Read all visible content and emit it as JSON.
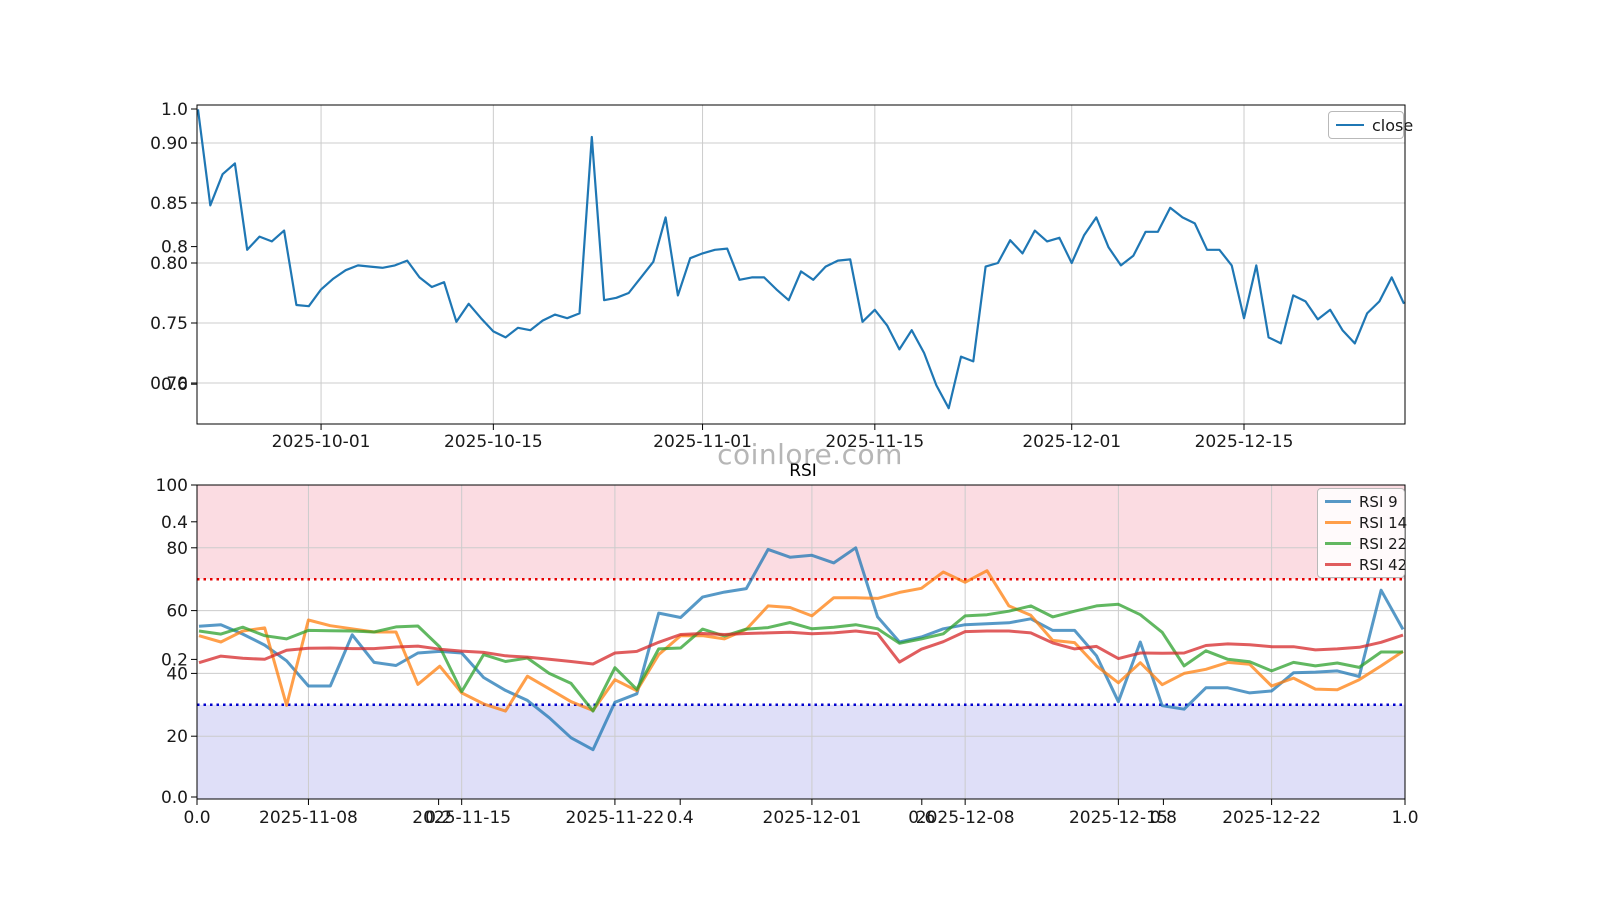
{
  "watermark": {
    "text": "coinlore.com"
  },
  "rsi_panel": {
    "title": "RSI"
  },
  "colors": {
    "close": "#1f77b4",
    "rsi9": "rgba(31,119,180,0.75)",
    "rsi14": "rgba(255,127,14,0.75)",
    "rsi22": "rgba(44,160,44,0.75)",
    "rsi42": "rgba(214,39,40,0.75)",
    "overbought_line": "#e50000",
    "oversold_line": "#0000cd",
    "overbought_band": "#fbdce2",
    "oversold_band": "#dfdff8",
    "grid": "#cccccc",
    "spine": "#000000",
    "tick_text": "#1a1a1a"
  },
  "chart_data": [
    {
      "type": "line",
      "title": "",
      "legend": [
        {
          "label": "close",
          "color_key": "close"
        }
      ],
      "legend_position": "upper right",
      "grid": true,
      "x_range": [
        "2025-09-21",
        "2025-12-28"
      ],
      "ylim": [
        0.666,
        0.932
      ],
      "y_ticks": [
        {
          "label": "0.90",
          "value": 0.9
        },
        {
          "label": "0.85",
          "value": 0.85
        },
        {
          "label": "0.80",
          "value": 0.8
        },
        {
          "label": "0.75",
          "value": 0.75
        },
        {
          "label": "0.70",
          "value": 0.7
        }
      ],
      "x_ticks": [
        {
          "label": "2025-10-01",
          "idx": 10
        },
        {
          "label": "2025-10-15",
          "idx": 24
        },
        {
          "label": "2025-11-01",
          "idx": 41
        },
        {
          "label": "2025-11-15",
          "idx": 55
        },
        {
          "label": "2025-12-01",
          "idx": 71
        },
        {
          "label": "2025-12-15",
          "idx": 85
        }
      ],
      "series": [
        {
          "name": "close",
          "color_key": "close",
          "width": 2.2,
          "values": [
            0.928,
            0.848,
            0.874,
            0.883,
            0.811,
            0.822,
            0.818,
            0.827,
            0.765,
            0.764,
            0.778,
            0.787,
            0.794,
            0.798,
            0.797,
            0.796,
            0.798,
            0.802,
            0.788,
            0.78,
            0.784,
            0.751,
            0.766,
            0.754,
            0.743,
            0.738,
            0.746,
            0.744,
            0.752,
            0.757,
            0.754,
            0.758,
            0.905,
            0.769,
            0.771,
            0.775,
            0.788,
            0.801,
            0.838,
            0.773,
            0.804,
            0.808,
            0.811,
            0.812,
            0.786,
            0.788,
            0.788,
            0.778,
            0.769,
            0.793,
            0.786,
            0.797,
            0.802,
            0.803,
            0.751,
            0.761,
            0.748,
            0.728,
            0.744,
            0.725,
            0.698,
            0.679,
            0.722,
            0.718,
            0.797,
            0.8,
            0.819,
            0.808,
            0.827,
            0.818,
            0.821,
            0.8,
            0.823,
            0.838,
            0.813,
            0.798,
            0.806,
            0.826,
            0.826,
            0.846,
            0.838,
            0.833,
            0.811,
            0.811,
            0.798,
            0.754,
            0.798,
            0.738,
            0.733,
            0.773,
            0.768,
            0.753,
            0.761,
            0.744,
            0.733,
            0.758,
            0.768,
            0.788,
            0.766
          ]
        }
      ]
    },
    {
      "type": "line",
      "title": "RSI",
      "legend": [
        {
          "label": "RSI 9",
          "color_key": "rsi9"
        },
        {
          "label": "RSI 14",
          "color_key": "rsi14"
        },
        {
          "label": "RSI 22",
          "color_key": "rsi22"
        },
        {
          "label": "RSI 42",
          "color_key": "rsi42"
        }
      ],
      "legend_position": "upper right",
      "grid": true,
      "x_range": [
        "2025-11-03",
        "2025-12-28"
      ],
      "ylim": [
        0,
        100
      ],
      "overbought_level": 70,
      "oversold_level": 30,
      "y_ticks": [
        {
          "label": "100",
          "value": 100
        },
        {
          "label": "80",
          "value": 80
        },
        {
          "label": "60",
          "value": 60
        },
        {
          "label": "40",
          "value": 40
        },
        {
          "label": "20",
          "value": 20
        }
      ],
      "x_ticks": [
        {
          "label": "2025-11-08",
          "idx": 5
        },
        {
          "label": "2025-11-15",
          "idx": 12
        },
        {
          "label": "2025-11-22",
          "idx": 19
        },
        {
          "label": "2025-12-01",
          "idx": 28
        },
        {
          "label": "2025-12-08",
          "idx": 35
        },
        {
          "label": "2025-12-15",
          "idx": 42
        },
        {
          "label": "2025-12-22",
          "idx": 49
        }
      ],
      "series": [
        {
          "name": "RSI 9",
          "color_key": "rsi9",
          "width": 3,
          "values": [
            55,
            55.5,
            52.5,
            49,
            44,
            36,
            36,
            52.3,
            43.5,
            42.5,
            46.5,
            47,
            46.5,
            38.7,
            34.6,
            31.4,
            25.9,
            19.5,
            15.7,
            30.8,
            33.5,
            59.2,
            57.8,
            64.3,
            65.9,
            67,
            79.5,
            77,
            77.6,
            75.2,
            80,
            58,
            50,
            51.6,
            54.2,
            55.5,
            55.8,
            56.1,
            57.4,
            53.7,
            53.7,
            45.6,
            31,
            50,
            29.7,
            28.6,
            35.4,
            35.4,
            33.8,
            34.4,
            40.2,
            40.4,
            40.8,
            39,
            66.5,
            54
          ]
        },
        {
          "name": "RSI 14",
          "color_key": "rsi14",
          "width": 3,
          "values": [
            52,
            50,
            53.5,
            54.5,
            29.8,
            57,
            55.2,
            54.2,
            53.2,
            53.2,
            36.5,
            42.3,
            33.8,
            30.3,
            28,
            39.1,
            35.1,
            31,
            28.2,
            38,
            34.5,
            46,
            52,
            52,
            51,
            54,
            61.5,
            61,
            58.3,
            64.1,
            64.1,
            63.9,
            65.8,
            67.1,
            72.3,
            69,
            72.7,
            61.5,
            58.5,
            50.5,
            49.8,
            42.4,
            37,
            43.4,
            36.4,
            40,
            41.3,
            43.5,
            42.9,
            36,
            38.5,
            35,
            34.8,
            38,
            42.4,
            47
          ]
        },
        {
          "name": "RSI 22",
          "color_key": "rsi22",
          "width": 3,
          "values": [
            53.5,
            52.5,
            54.7,
            52,
            51,
            53.7,
            53.6,
            53.5,
            53.2,
            54.8,
            55.1,
            48.4,
            34.2,
            46,
            43.8,
            44.9,
            40,
            36.8,
            28,
            41.8,
            34.9,
            47.8,
            48.1,
            54.1,
            51.9,
            54.1,
            54.6,
            56.2,
            54.2,
            54.7,
            55.5,
            54.2,
            49.6,
            51,
            52.6,
            58.3,
            58.7,
            59.8,
            61.5,
            58,
            59.8,
            61.5,
            62,
            58.7,
            53.1,
            42.4,
            47.2,
            44.5,
            43.7,
            40.8,
            43.5,
            42.4,
            43.3,
            41.9,
            46.8,
            46.8
          ]
        },
        {
          "name": "RSI 42",
          "color_key": "rsi42",
          "width": 3,
          "values": [
            43.4,
            45.5,
            44.8,
            44.5,
            47.4,
            48,
            48.1,
            47.9,
            47.9,
            48.4,
            48.7,
            47.7,
            47.1,
            46.7,
            45.6,
            45.2,
            44.5,
            43.8,
            43,
            46.5,
            47,
            49.9,
            52.4,
            52.7,
            52.4,
            52.7,
            52.9,
            53.1,
            52.6,
            52.9,
            53.5,
            52.6,
            43.6,
            47.7,
            50.1,
            53.3,
            53.5,
            53.5,
            52.9,
            49.7,
            47.8,
            48.6,
            44.7,
            46.5,
            46.4,
            46.5,
            48.9,
            49.4,
            49.1,
            48.5,
            48.5,
            47.5,
            47.8,
            48.3,
            49.9,
            52.2
          ]
        }
      ]
    }
  ],
  "background_axis": {
    "y_tick_labels": [
      "1.0",
      "0.8",
      "0.6",
      "0.4",
      "0.2",
      "0.0"
    ],
    "x_tick_labels": [
      "0.0",
      "0.2",
      "0.4",
      "0.6",
      "0.8",
      "1.0"
    ]
  }
}
